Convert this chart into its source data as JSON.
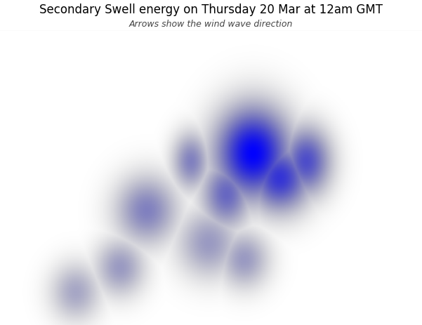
{
  "title": "Secondary Swell energy on Thursday 20 Mar at 12am GMT",
  "subtitle": "Arrows show the wind wave direction",
  "title_fontsize": 12,
  "subtitle_fontsize": 9,
  "fig_width": 6.01,
  "fig_height": 4.63,
  "dpi": 100,
  "background_color": "#ffffff",
  "ocean_color": [
    0,
    0,
    0
  ],
  "land_color": [
    160,
    160,
    160
  ],
  "arrow_color": "#00e8e8",
  "map_lon_min": -65,
  "map_lon_max": 30,
  "map_lat_min": 42,
  "map_lat_max": 78,
  "swell_blobs": [
    {
      "lon": -8,
      "lat": 63,
      "sx": 6,
      "sy": 4,
      "intensity": 1.0,
      "r": 0,
      "g": 0,
      "b": 220
    },
    {
      "lon": -2,
      "lat": 60,
      "sx": 5,
      "sy": 3,
      "intensity": 0.8,
      "r": 0,
      "g": 0,
      "b": 180
    },
    {
      "lon": 4,
      "lat": 62,
      "sx": 4,
      "sy": 3,
      "intensity": 0.7,
      "r": 0,
      "g": 0,
      "b": 160
    },
    {
      "lon": -14,
      "lat": 58,
      "sx": 4,
      "sy": 3,
      "intensity": 0.6,
      "r": 0,
      "g": 0,
      "b": 160
    },
    {
      "lon": -22,
      "lat": 62,
      "sx": 3,
      "sy": 2.5,
      "intensity": 0.5,
      "r": 0,
      "g": 0,
      "b": 140
    },
    {
      "lon": -32,
      "lat": 56,
      "sx": 5,
      "sy": 3,
      "intensity": 0.5,
      "r": 0,
      "g": 0,
      "b": 130
    },
    {
      "lon": -18,
      "lat": 52,
      "sx": 5,
      "sy": 3,
      "intensity": 0.4,
      "r": 0,
      "g": 0,
      "b": 120
    },
    {
      "lon": -10,
      "lat": 50,
      "sx": 4,
      "sy": 2.5,
      "intensity": 0.4,
      "r": 0,
      "g": 0,
      "b": 110
    },
    {
      "lon": -38,
      "lat": 49,
      "sx": 4,
      "sy": 2.5,
      "intensity": 0.4,
      "r": 0,
      "g": 0,
      "b": 110
    },
    {
      "lon": -48,
      "lat": 46,
      "sx": 4,
      "sy": 2.5,
      "intensity": 0.35,
      "r": 0,
      "g": 0,
      "b": 100
    }
  ],
  "wind_arrows": [
    {
      "lon": -15,
      "lat": 66,
      "u": 0.6,
      "v": 0.6
    },
    {
      "lon": -10,
      "lat": 67,
      "u": 0.5,
      "v": 0.7
    },
    {
      "lon": -4,
      "lat": 68,
      "u": 0.4,
      "v": 0.6
    },
    {
      "lon": 2,
      "lat": 68,
      "u": 0.3,
      "v": 0.5
    },
    {
      "lon": 8,
      "lat": 68,
      "u": 0.3,
      "v": 0.5
    },
    {
      "lon": 14,
      "lat": 67,
      "u": 0.2,
      "v": 0.5
    },
    {
      "lon": -18,
      "lat": 65,
      "u": 0.5,
      "v": 0.7
    },
    {
      "lon": -12,
      "lat": 65,
      "u": 0.5,
      "v": 0.7
    },
    {
      "lon": -6,
      "lat": 64,
      "u": 0.4,
      "v": 0.6
    },
    {
      "lon": 0,
      "lat": 64,
      "u": 0.3,
      "v": 0.6
    },
    {
      "lon": 6,
      "lat": 65,
      "u": 0.3,
      "v": 0.5
    },
    {
      "lon": 12,
      "lat": 65,
      "u": 0.2,
      "v": 0.5
    },
    {
      "lon": 18,
      "lat": 64,
      "u": 0.2,
      "v": 0.4
    },
    {
      "lon": -20,
      "lat": 63,
      "u": 0.4,
      "v": 0.6
    },
    {
      "lon": -14,
      "lat": 62,
      "u": 0.4,
      "v": 0.6
    },
    {
      "lon": -8,
      "lat": 61,
      "u": 0.4,
      "v": 0.6
    },
    {
      "lon": -2,
      "lat": 62,
      "u": 0.3,
      "v": 0.5
    },
    {
      "lon": 4,
      "lat": 62,
      "u": 0.3,
      "v": 0.5
    },
    {
      "lon": 10,
      "lat": 62,
      "u": 0.2,
      "v": 0.4
    },
    {
      "lon": 16,
      "lat": 62,
      "u": 0.2,
      "v": 0.4
    },
    {
      "lon": -16,
      "lat": 60,
      "u": 0.4,
      "v": 0.5
    },
    {
      "lon": -10,
      "lat": 59,
      "u": 0.3,
      "v": 0.5
    },
    {
      "lon": -4,
      "lat": 59,
      "u": 0.3,
      "v": 0.4
    },
    {
      "lon": 2,
      "lat": 60,
      "u": 0.2,
      "v": 0.4
    },
    {
      "lon": 8,
      "lat": 59,
      "u": 0.2,
      "v": 0.3
    },
    {
      "lon": -30,
      "lat": 58,
      "u": 0.3,
      "v": 0.3
    },
    {
      "lon": -22,
      "lat": 57,
      "u": 0.3,
      "v": 0.4
    },
    {
      "lon": -14,
      "lat": 56,
      "u": 0.3,
      "v": 0.3
    },
    {
      "lon": -30,
      "lat": 54,
      "u": 0.3,
      "v": 0.2
    },
    {
      "lon": -20,
      "lat": 53,
      "u": 0.3,
      "v": 0.3
    },
    {
      "lon": -12,
      "lat": 52,
      "u": 0.2,
      "v": 0.3
    },
    {
      "lon": -4,
      "lat": 51,
      "u": 0.2,
      "v": 0.2
    },
    {
      "lon": -38,
      "lat": 52,
      "u": 0.3,
      "v": 0.2
    },
    {
      "lon": -30,
      "lat": 50,
      "u": 0.3,
      "v": 0.2
    },
    {
      "lon": -20,
      "lat": 49,
      "u": 0.3,
      "v": 0.2
    },
    {
      "lon": -10,
      "lat": 48,
      "u": 0.2,
      "v": 0.2
    },
    {
      "lon": -46,
      "lat": 50,
      "u": 0.3,
      "v": 0.2
    },
    {
      "lon": -40,
      "lat": 48,
      "u": 0.3,
      "v": 0.15
    },
    {
      "lon": -54,
      "lat": 48,
      "u": 0.3,
      "v": 0.2
    },
    {
      "lon": -44,
      "lat": 44,
      "u": 0.3,
      "v": 0.2
    },
    {
      "lon": -34,
      "lat": 44,
      "u": 0.3,
      "v": 0.2
    },
    {
      "lon": -24,
      "lat": 44,
      "u": 0.3,
      "v": 0.2
    },
    {
      "lon": -14,
      "lat": 44,
      "u": 0.2,
      "v": 0.2
    },
    {
      "lon": -4,
      "lat": 44,
      "u": 0.2,
      "v": 0.15
    },
    {
      "lon": -60,
      "lat": 56,
      "u": 0.2,
      "v": 0.2
    },
    {
      "lon": -56,
      "lat": 52,
      "u": 0.2,
      "v": 0.2
    },
    {
      "lon": -62,
      "lat": 50,
      "u": 0.2,
      "v": 0.2
    },
    {
      "lon": 20,
      "lat": 67,
      "u": 0.2,
      "v": 0.4
    },
    {
      "lon": 22,
      "lat": 64,
      "u": 0.15,
      "v": 0.35
    },
    {
      "lon": -24,
      "lat": 65,
      "u": 0.3,
      "v": 0.5
    }
  ]
}
